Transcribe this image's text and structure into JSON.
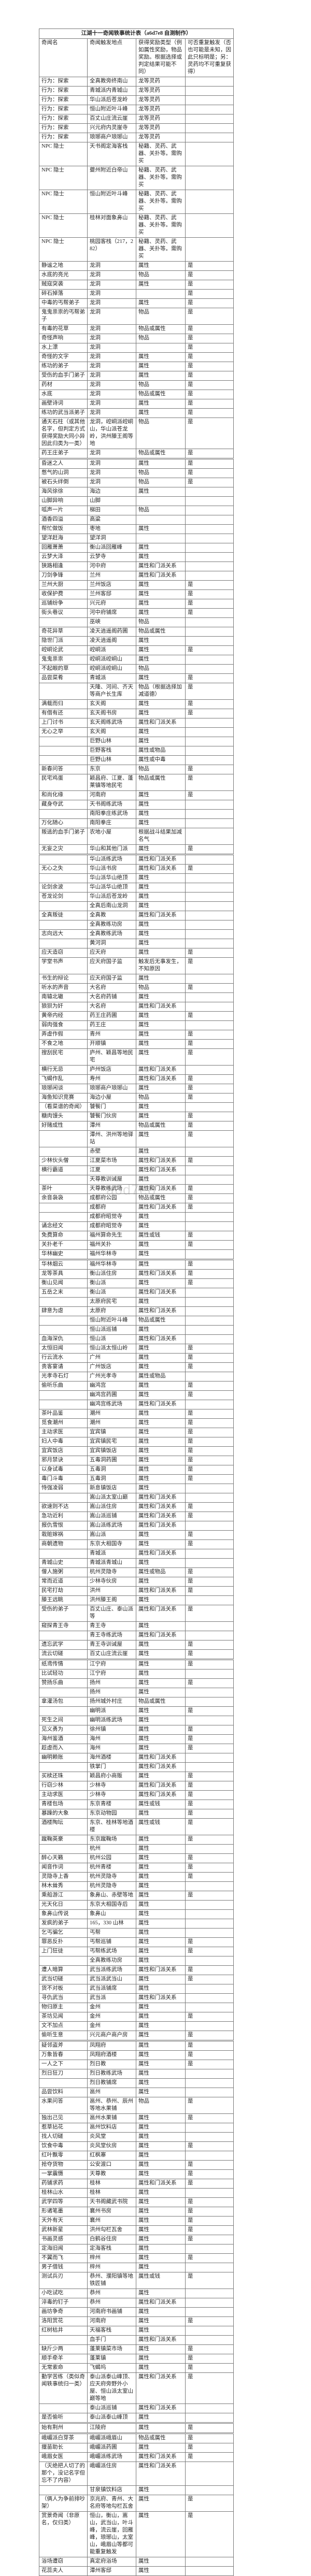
{
  "page": {
    "title": "江湖十一奇闻轶事统计表（a6d7e8 自测制作）",
    "watermark": "a6d7e8"
  },
  "table": {
    "columns": [
      "奇闻名",
      "奇闻触发地点",
      "获得奖励类型（例如属性奖励，物品奖励。根据选择或判定结果可能不同）",
      "可否重复触发（否也可能是未知，因此只标明是；另：灵药均不可重复获得）"
    ],
    "break_before": [
      30,
      70,
      111,
      153,
      193,
      230,
      231
    ],
    "rows": [
      [
        "行为：探索",
        "全真教旁终南山",
        "龙等灵药",
        ""
      ],
      [
        "行为：探索",
        "青城派内青城山",
        "龙等灵药",
        ""
      ],
      [
        "行为：探索",
        "华山派后苍龙岭",
        "龙等灵药",
        ""
      ],
      [
        "行为：探索",
        "恒山附近叶斗峰",
        "龙等灵药",
        ""
      ],
      [
        "行为：探索",
        "百丈山庄流云崖",
        "龙等灵药",
        ""
      ],
      [
        "行为：探索",
        "兴元府内灵崖寺",
        "龙等灵药",
        ""
      ],
      [
        "行为：探索",
        "琅琊商户琅琊山",
        "龙等灵药",
        ""
      ],
      [
        "NPC 隐士",
        "天书阁定海客栈",
        "秘籍、灵药、武器、关扑等。需购买",
        ""
      ],
      [
        "NPC 隐士",
        "夔州附近白帝山",
        "秘籍、灵药、武器、关扑等。需购买",
        ""
      ],
      [
        "NPC 隐士",
        "恒山附近叶斗峰",
        "秘籍、灵药、武器、关扑等。需购买",
        ""
      ],
      [
        "NPC 隐士",
        "桂林对面象鼻山",
        "秘籍、灵药、武器、关扑等。需购买",
        ""
      ],
      [
        "NPC 隐士",
        "桃园客栈（217，282）",
        "秘籍、灵药、武器、关扑等。需购买",
        ""
      ],
      [
        "静谧之地",
        "龙洞",
        "属性",
        "是"
      ],
      [
        "水底的亮光",
        "龙洞",
        "物品",
        "是"
      ],
      [
        "贼寇突袭",
        "龙洞",
        "属性",
        "是"
      ],
      [
        "碎石掉落",
        "龙洞",
        "",
        "是"
      ],
      [
        "中毒的丐帮弟子",
        "龙洞",
        "属性",
        "是"
      ],
      [
        "鬼鬼祟祟的丐帮弟子",
        "龙洞",
        "物品",
        "是"
      ],
      [
        "有毒的花草",
        "龙洞",
        "物品或属性",
        "是"
      ],
      [
        "奇怪声响",
        "龙洞",
        "物品",
        "是"
      ],
      [
        "水上漂",
        "龙洞",
        "",
        "是"
      ],
      [
        "奇怪的文字",
        "龙洞",
        "属性",
        "是"
      ],
      [
        "练功的弟子",
        "龙洞",
        "属性",
        "是"
      ],
      [
        "受伤的血手门弟子",
        "龙洞",
        "属性",
        "是"
      ],
      [
        "药材",
        "龙洞",
        "物品",
        "是"
      ],
      [
        "水底",
        "龙洞",
        "物品或属性",
        "是"
      ],
      [
        "画壁诗词",
        "龙洞",
        "属性",
        "是"
      ],
      [
        "练功的武当派弟子",
        "龙洞",
        "属性",
        "是"
      ],
      [
        "通天石柱（或其他名字，但判定方式获得奖励大同小异因此归类为一类）",
        "龙洞，崆峒派崆峒山，华山派苍龙岭，洪州滕王阁等地",
        "物品",
        "是"
      ],
      [
        "药王庄弟子",
        "龙洞",
        "物品或属性",
        "是"
      ],
      [
        "昏迷之人",
        "龙洞",
        "属性",
        "是"
      ],
      [
        "憋气的山洞",
        "龙洞",
        "物品",
        "是"
      ],
      [
        "被石头绊倒",
        "龙洞",
        "物品",
        "是"
      ],
      [
        "海风徐徐",
        "海边",
        "属性",
        ""
      ],
      [
        "山脚异响",
        "山脚",
        "",
        ""
      ],
      [
        "呱声一片",
        "梯田",
        "物品",
        ""
      ],
      [
        "酒香四溢",
        "高粱",
        "",
        ""
      ],
      [
        "帮忙做饭",
        "枣地",
        "属性",
        ""
      ],
      [
        "望洋赶海",
        "望洋洞",
        "",
        ""
      ],
      [
        "回雁萧萧",
        "衡山派回雁峰",
        "属性",
        ""
      ],
      [
        "云梦大泽",
        "云梦寺",
        "属性",
        ""
      ],
      [
        "狭路相逢",
        "河中府",
        "属性和门派关系",
        ""
      ],
      [
        "刀剑争锋",
        "兰州",
        "属性和门派关系",
        ""
      ],
      [
        "兰州大厨",
        "兰州饭店",
        "属性",
        "是"
      ],
      [
        "收保护费",
        "兰州客邸",
        "属性",
        "是"
      ],
      [
        "巡铺纷争",
        "兴元府",
        "属性",
        "是"
      ],
      [
        "街头巷议",
        "河中府铺席",
        "属性",
        "是"
      ],
      [
        "",
        "巫峡",
        "物品",
        ""
      ],
      [
        "奇花异草",
        "凌天逍遥阁药圃",
        "物品或属性",
        ""
      ],
      [
        "隐世门派",
        "凌天逍遥阁",
        "属性",
        ""
      ],
      [
        "崆峒论武",
        "崆峒派",
        "属性",
        "是"
      ],
      [
        "鬼鬼祟祟",
        "崆峒派崆峒山",
        "属性",
        ""
      ],
      [
        "不起眼的草",
        "崆峒派崆峒山",
        "物品",
        ""
      ],
      [
        "品尝菜肴",
        "青城派",
        "属性",
        "是"
      ],
      [
        "",
        "天隆、河间、齐天等商户长生库",
        "物品（根据选择加减道德）",
        "是"
      ],
      [
        "满载而归",
        "玄天阁",
        "属性",
        "是"
      ],
      [
        "有借有还",
        "玄天阁书房",
        "属性",
        "是"
      ],
      [
        "上门讨书",
        "玄天阁练武场",
        "属性和门派关系",
        ""
      ],
      [
        "无心之举",
        "玄天阁",
        "属性",
        ""
      ],
      [
        "",
        "巨野山林",
        "属性",
        ""
      ],
      [
        "",
        "巨野客栈",
        "属性或物品",
        ""
      ],
      [
        "",
        "巨野山林",
        "属性或中毒",
        ""
      ],
      [
        "新春问答",
        "东京",
        "物品",
        "是"
      ],
      [
        "民宅鸡蛋",
        "颖昌府、江夏、蓬莱镇等地民宅",
        "物品或属性",
        "是"
      ],
      [
        "和尚化缘",
        "河南府",
        "属性",
        "是"
      ],
      [
        "藏身夺武",
        "天书阁练武场",
        "属性",
        ""
      ],
      [
        "",
        "南阳拳庄练武场",
        "属性",
        ""
      ],
      [
        "万化随心",
        "南阳拳庄",
        "属性",
        ""
      ],
      [
        "叛逃的血手门弟子",
        "农地小屋",
        "根据战斗结果加减名气",
        ""
      ],
      [
        "无妄之灾",
        "华山和其他门派",
        "属性",
        "是"
      ],
      [
        "",
        "华山派练武场",
        "属性和门派关系",
        ""
      ],
      [
        "无心之失",
        "华山派书房",
        "属性和门派关系",
        "是"
      ],
      [
        "",
        "华山派华山绝顶",
        "属性",
        ""
      ],
      [
        "论剑余波",
        "华山派华山绝顶",
        "属性",
        ""
      ],
      [
        "苍龙论剑",
        "华山派后苍龙岭",
        "属性",
        ""
      ],
      [
        "",
        "全真后南山龙洞",
        "属性",
        ""
      ],
      [
        "全真叛徒",
        "全真教",
        "属性和门派关系",
        ""
      ],
      [
        "",
        "全真教练功房",
        "属性",
        ""
      ],
      [
        "志向远大",
        "全真教练武场",
        "属性",
        ""
      ],
      [
        "",
        "黄河洞",
        "属性",
        ""
      ],
      [
        "应天造窃",
        "应天府",
        "属性",
        "是"
      ],
      [
        "学堂书声",
        "应天府国子监",
        "触发后无事发生，不知原因",
        "是"
      ],
      [
        "书生的辩论",
        "应天府国子监",
        "属性",
        ""
      ],
      [
        "听水的声音",
        "大名府",
        "物品",
        "是"
      ],
      [
        "南辕北辙",
        "大名府药铺",
        "属性",
        ""
      ],
      [
        "狼狈为奸",
        "大名府",
        "属性和门派关系",
        ""
      ],
      [
        "黄帝内经",
        "药王庄药圃",
        "属性",
        "是"
      ],
      [
        "弱肉强食",
        "药王庄",
        "属性",
        ""
      ],
      [
        "弄虚作假",
        "青州",
        "属性",
        "是"
      ],
      [
        "不食之地",
        "开顺镇",
        "属性",
        "是"
      ],
      [
        "搜刮民宅",
        "庐州、颖昌等地民宅",
        "属性",
        "是"
      ],
      [
        "横行无忌",
        "庐州饭店",
        "属性和门派关系",
        ""
      ],
      [
        "飞蝎作乱",
        "寿州",
        "属性和门派关系",
        "是"
      ],
      [
        "琅琊闲谈",
        "琅琊商户琅琊山",
        "属性",
        "是"
      ],
      [
        "海鱼知识竞赛",
        "海边小屋",
        "物品",
        "是"
      ],
      [
        "（看菜谱的奇闻）",
        "饕餮门",
        "属性",
        ""
      ],
      [
        "糖肉馒头",
        "饕餮门伙房",
        "属性",
        "是"
      ],
      [
        "好赌成性",
        "潭州",
        "物品或属性",
        "是"
      ],
      [
        "",
        "潭州、洪州等地驿站",
        "属性",
        "是"
      ],
      [
        "",
        "赤壁",
        "属性",
        ""
      ],
      [
        "少林伙头僧",
        "江夏菜市场",
        "属性和门派关系",
        "是"
      ],
      [
        "横行霸道",
        "江夏",
        "属性和门派关系",
        ""
      ],
      [
        "",
        "天尊教训诫屋",
        "属性",
        ""
      ],
      [
        "茶叶",
        "天尊教练武场",
        "属性和门派关系",
        "是"
      ],
      [
        "余音袅袅",
        "成都府公园",
        "物品或属性",
        "是"
      ],
      [
        "",
        "成都府",
        "属性和门派关系",
        "是"
      ],
      [
        "",
        "成都府昭觉寺",
        "属性",
        ""
      ],
      [
        "诵念经文",
        "成都府昭觉寺",
        "属性",
        ""
      ],
      [
        "免费算命",
        "福州算命先生",
        "属性或钱",
        "是"
      ],
      [
        "关扑老千",
        "福州关扑",
        "属性",
        "是"
      ],
      [
        "华林幽史",
        "福州华林寺",
        "属性",
        ""
      ],
      [
        "华林烟云",
        "福州华林寺",
        "属性",
        "是"
      ],
      [
        "龙等茶具",
        "衡山派住房",
        "属性和门派关系",
        "是"
      ],
      [
        "衡山见闻",
        "衡山派",
        "属性",
        "是"
      ],
      [
        "五岳之末",
        "衡山派",
        "属性和门派关系",
        ""
      ],
      [
        "",
        "太原府民宅",
        "属性",
        ""
      ],
      [
        "肆意为虐",
        "太原府",
        "属性和门派关系",
        ""
      ],
      [
        "",
        "恒山附近叶斗峰",
        "物品或属性",
        ""
      ],
      [
        "",
        "恒山派巡铺",
        "属性",
        ""
      ],
      [
        "血海深仇",
        "恒山派",
        "属性和门派关系",
        ""
      ],
      [
        "太恒旧闻",
        "恒山派太恒山岭",
        "属性",
        "是"
      ],
      [
        "行云流水",
        "广州",
        "属性",
        "是"
      ],
      [
        "贵客宴请",
        "广州饭店",
        "属性",
        "是"
      ],
      [
        "光孝寺石灯",
        "广州光孝寺",
        "属性或物品",
        ""
      ],
      [
        "偷听乐曲",
        "幽鸿宫",
        "属性",
        "是"
      ],
      [
        "",
        "幽鸿宫药圃",
        "属性",
        "是"
      ],
      [
        "",
        "幽鸿宫练武场",
        "属性和门派关系",
        ""
      ],
      [
        "茶叶品鉴",
        "潮州",
        "属性",
        "是"
      ],
      [
        "觅食潮州",
        "潮州",
        "属性",
        "是"
      ],
      [
        "主动求医",
        "宜宾镇",
        "属性",
        "是"
      ],
      [
        "妇人中毒",
        "宜宾镇民宅",
        "属性",
        "是"
      ],
      [
        "宜宾饭店",
        "宜宾镇饭店",
        "属性",
        "是"
      ],
      [
        "邪月禁诀",
        "五毒洞药圃",
        "属性",
        "是"
      ],
      [
        "以身试毒",
        "五毒洞",
        "属性",
        "是"
      ],
      [
        "毒门斗毒",
        "五毒洞",
        "属性",
        "是"
      ],
      [
        "恃强凌弱",
        "新息镇饭店",
        "属性",
        ""
      ],
      [
        "",
        "嵩山派太室山巅",
        "属性和门派关系",
        ""
      ],
      [
        "欲速则不达",
        "嵩山派住房",
        "属性和门派关系",
        "是"
      ],
      [
        "急功近利",
        "嵩山派巡铺",
        "属性和门派关系",
        "是"
      ],
      [
        "报仇雪恨",
        "嵩山派练武场",
        "属性和门派关系",
        ""
      ],
      [
        "栽赃嫁祸",
        "嵩山派",
        "属性",
        "是"
      ],
      [
        "商朝遗物",
        "东京大相国寺",
        "属性",
        "是"
      ],
      [
        "",
        "青城派",
        "属性和门派关系",
        ""
      ],
      [
        "青城山史",
        "青城派青城山",
        "属性",
        ""
      ],
      [
        "僧人施粥",
        "杭州灵隐寺",
        "属性或物品",
        "是"
      ],
      [
        "常而近道",
        "少林寺伙房",
        "属性",
        "是"
      ],
      [
        "民宅打劫",
        "洪州",
        "属性和门派关系",
        "是"
      ],
      [
        "滕王远眺",
        "洪州滕王阁",
        "属性",
        ""
      ],
      [
        "受伤的弟子",
        "百丈山庄、泰山派等",
        "属性和门派关系",
        "是"
      ],
      [
        "窥探青王寺",
        "青王寺",
        "属性",
        ""
      ],
      [
        "",
        "青王寺练武场",
        "属性和门派关系",
        ""
      ],
      [
        "遗忘武学",
        "青王寺训诫屋",
        "属性",
        "是"
      ],
      [
        "流云切磋",
        "百丈山庄流云崖",
        "属性",
        "是"
      ],
      [
        "纸鸢传情",
        "江宁府",
        "属性",
        "是"
      ],
      [
        "比试轻功",
        "江宁府",
        "属性",
        ""
      ],
      [
        "赞扬乐曲",
        "扬州",
        "属性",
        "是"
      ],
      [
        "",
        "扬州",
        "属性",
        ""
      ],
      [
        "拿灌汤包",
        "扬州城外村庄",
        "物品或属性",
        ""
      ],
      [
        "",
        "幽明派",
        "属性",
        "是"
      ],
      [
        "死生之间",
        "幽明派练武场",
        "属性",
        ""
      ],
      [
        "见义勇为",
        "徐州镇",
        "属性",
        "是"
      ],
      [
        "海州鉴酒",
        "海州",
        "属性",
        "是"
      ],
      [
        "趁虚而入",
        "海州",
        "属性",
        "是"
      ],
      [
        "幽明赖账",
        "海州酒楼",
        "属性和门派关系",
        ""
      ],
      [
        "",
        "铁掌门",
        "属性和门派关系",
        ""
      ],
      [
        "买椟还珠",
        "颖昌府小商贩",
        "属性",
        "是"
      ],
      [
        "行窃少林",
        "少林寺",
        "属性和门派关系",
        "是"
      ],
      [
        "主动求医",
        "少林寺",
        "属性和门派关系",
        "是"
      ],
      [
        "青楼包场",
        "东京青楼",
        "属性或钱",
        "是"
      ],
      [
        "暴躁的大象",
        "东京动物园",
        "属性",
        "是"
      ],
      [
        "酒楼陶坛",
        "东京、桂林等地酒楼",
        "属性或钱",
        "是"
      ],
      [
        "蹴鞠英豪",
        "东京蹴鞠场",
        "属性",
        "是"
      ],
      [
        "",
        "杭州",
        "属性",
        ""
      ],
      [
        "醉心天籁",
        "杭州公园",
        "属性",
        "是"
      ],
      [
        "闻音作词",
        "杭州青楼",
        "属性",
        "是"
      ],
      [
        "灵隐寺上香",
        "杭州灵隐寺",
        "属性",
        "是"
      ],
      [
        "林木耸秀",
        "杭州灵隐寺",
        "属性",
        ""
      ],
      [
        "乘船游江",
        "象鼻山、赤壁等地",
        "属性",
        "是"
      ],
      [
        "光天化日",
        "东京大相国寺后",
        "属性",
        ""
      ],
      [
        "象鼻山传说",
        "象鼻山",
        "属性",
        ""
      ],
      [
        "发疯的弟子",
        "165，330 山林",
        "属性",
        ""
      ],
      [
        "乞丐骗乞",
        "丐帮",
        "属性",
        ""
      ],
      [
        "罪恶反扑",
        "丐帮巡铺",
        "属性",
        "是"
      ],
      [
        "上门狂徒",
        "丐帮练武场",
        "属性",
        "是"
      ],
      [
        "",
        "全真教练功房",
        "属性",
        ""
      ],
      [
        "遭人暗算",
        "武当派练武场",
        "属性和门派关系",
        "是"
      ],
      [
        "武当切磋",
        "武当派武当山",
        "属性",
        "是"
      ],
      [
        "货不对板",
        "武当派铺席",
        "属性",
        ""
      ],
      [
        "寻仇武当",
        "武当派",
        "属性和门派关系",
        ""
      ],
      [
        "物归原主",
        "金州",
        "属性",
        ""
      ],
      [
        "茶坊见闻",
        "金州",
        "属性",
        "是"
      ],
      [
        "文不加点",
        "金州",
        "属性",
        ""
      ],
      [
        "偷听生意",
        "兴元商户商户房",
        "属性",
        "是"
      ],
      [
        "疑邻盗斧",
        "凤翔府",
        "属性",
        "是"
      ],
      [
        "万象皆春",
        "凤翔府酒楼",
        "属性",
        "是"
      ],
      [
        "一人之下",
        "烈日教",
        "属性",
        "是"
      ],
      [
        "烈日狂刀",
        "烈日教练武场",
        "属性",
        ""
      ],
      [
        "",
        "烈日教铺席",
        "属性",
        ""
      ],
      [
        "品尝饮料",
        "邕州",
        "属性",
        ""
      ],
      [
        "水果问答",
        "邕州、恭州、辰州等地水果铺",
        "物品",
        "是"
      ],
      [
        "独出己见",
        "邕州水果铺",
        "属性",
        "是"
      ],
      [
        "惹草拈花",
        "邕州饮料店",
        "属性",
        ""
      ],
      [
        "找人切磋",
        "炎风堂",
        "属性",
        ""
      ],
      [
        "饮食中毒",
        "炎风堂伙房",
        "属性",
        "是"
      ],
      [
        "红叶飘零",
        "红枫寨",
        "属性",
        ""
      ],
      [
        "抢夺货物",
        "公安渡口",
        "属性",
        "是"
      ],
      [
        "一掌震慑",
        "天尊教",
        "属性",
        "是"
      ],
      [
        "药铺求药",
        "桂林",
        "属性和门派关系",
        "是"
      ],
      [
        "桂林山水",
        "桂林",
        "属性",
        ""
      ],
      [
        "武学四等",
        "天书阁藏武书院",
        "属性",
        "是"
      ],
      [
        "形诸笔墨",
        "襄州书房",
        "属性",
        "是"
      ],
      [
        "天外有天",
        "襄州",
        "属性",
        "是"
      ],
      [
        "武林新星",
        "洪州勾栏瓦舍",
        "属性",
        "是"
      ],
      [
        "书画灵感",
        "白鹤谷住房",
        "属性",
        "是"
      ],
      [
        "定海旧闻",
        "定海客栈",
        "属性",
        ""
      ],
      [
        "不翼而飞",
        "梓州",
        "属性",
        "是"
      ],
      [
        "男子借钱",
        "梓州",
        "属性",
        ""
      ],
      [
        "测试兵刃",
        "恭州、濮阳镇等地铁匠铺",
        "属性或钱",
        "是"
      ],
      [
        "小吃试吃",
        "恭州",
        "属性",
        ""
      ],
      [
        "淬毒的钉子",
        "恭州",
        "属性和门派关系",
        ""
      ],
      [
        "画坊争奇",
        "河南府书画铺",
        "属性",
        ""
      ],
      [
        "洛阳赏花",
        "河南府",
        "属性",
        "是"
      ],
      [
        "红树枯井",
        "天福客栈",
        "属性",
        ""
      ],
      [
        "",
        "血手门",
        "属性和门派关系",
        ""
      ],
      [
        "缺斤少两",
        "蓬莱镇菜市场",
        "属性",
        "是"
      ],
      [
        "顺手牵羊",
        "蓬莱镇",
        "属性",
        "是"
      ],
      [
        "无常索命",
        "飞蝎坞",
        "属性",
        "是"
      ],
      [
        "勤学苦练（类似奇闻轶事统归一类）",
        "泰山派泰山峰顶、应天府旁野外小屋、恒山派太室山巅等地",
        "属性和门派关系",
        "是"
      ],
      [
        "",
        "泰山派巡铺",
        "属性和门派关系",
        ""
      ],
      [
        "是否偷听",
        "泰山派泰山峰顶",
        "属性",
        ""
      ],
      [
        "始有荆州",
        "江陵府",
        "属性",
        "是"
      ],
      [
        "峨嵋派白芽茶",
        "峨嵋派峨眉山",
        "物品或属性",
        "是"
      ],
      [
        "揠苗助长",
        "峨嵋派药圃",
        "属性",
        "是"
      ],
      [
        "峨眉女医",
        "峨嵋派练武场",
        "属性和门派关系",
        "是"
      ],
      [
        "（灭绝把人切了的那个，没记名字但忘不了内容）",
        "峨嵋派住房",
        "属性和门派关系",
        ""
      ],
      [
        "",
        "甘泉镇饮料店",
        "属性",
        ""
      ],
      [
        "（俩人为争前排吵架）",
        "京兆府、青州、大名府等地勾栏瓦舍",
        "属性",
        "是"
      ],
      [
        "赏景奇闻（非原名，仅归类）",
        "恒山，衡山，嵩山，武当山，叶斗峰，流云崖，回雁峰，琅琊山，太室山，峨眉山等都可能重复触发",
        "属性",
        "是"
      ],
      [
        "浴场遭窃",
        "真定府浴场",
        "属性",
        ""
      ],
      [
        "花蕊夫人",
        "潭州客邸",
        "属性",
        ""
      ]
    ]
  }
}
